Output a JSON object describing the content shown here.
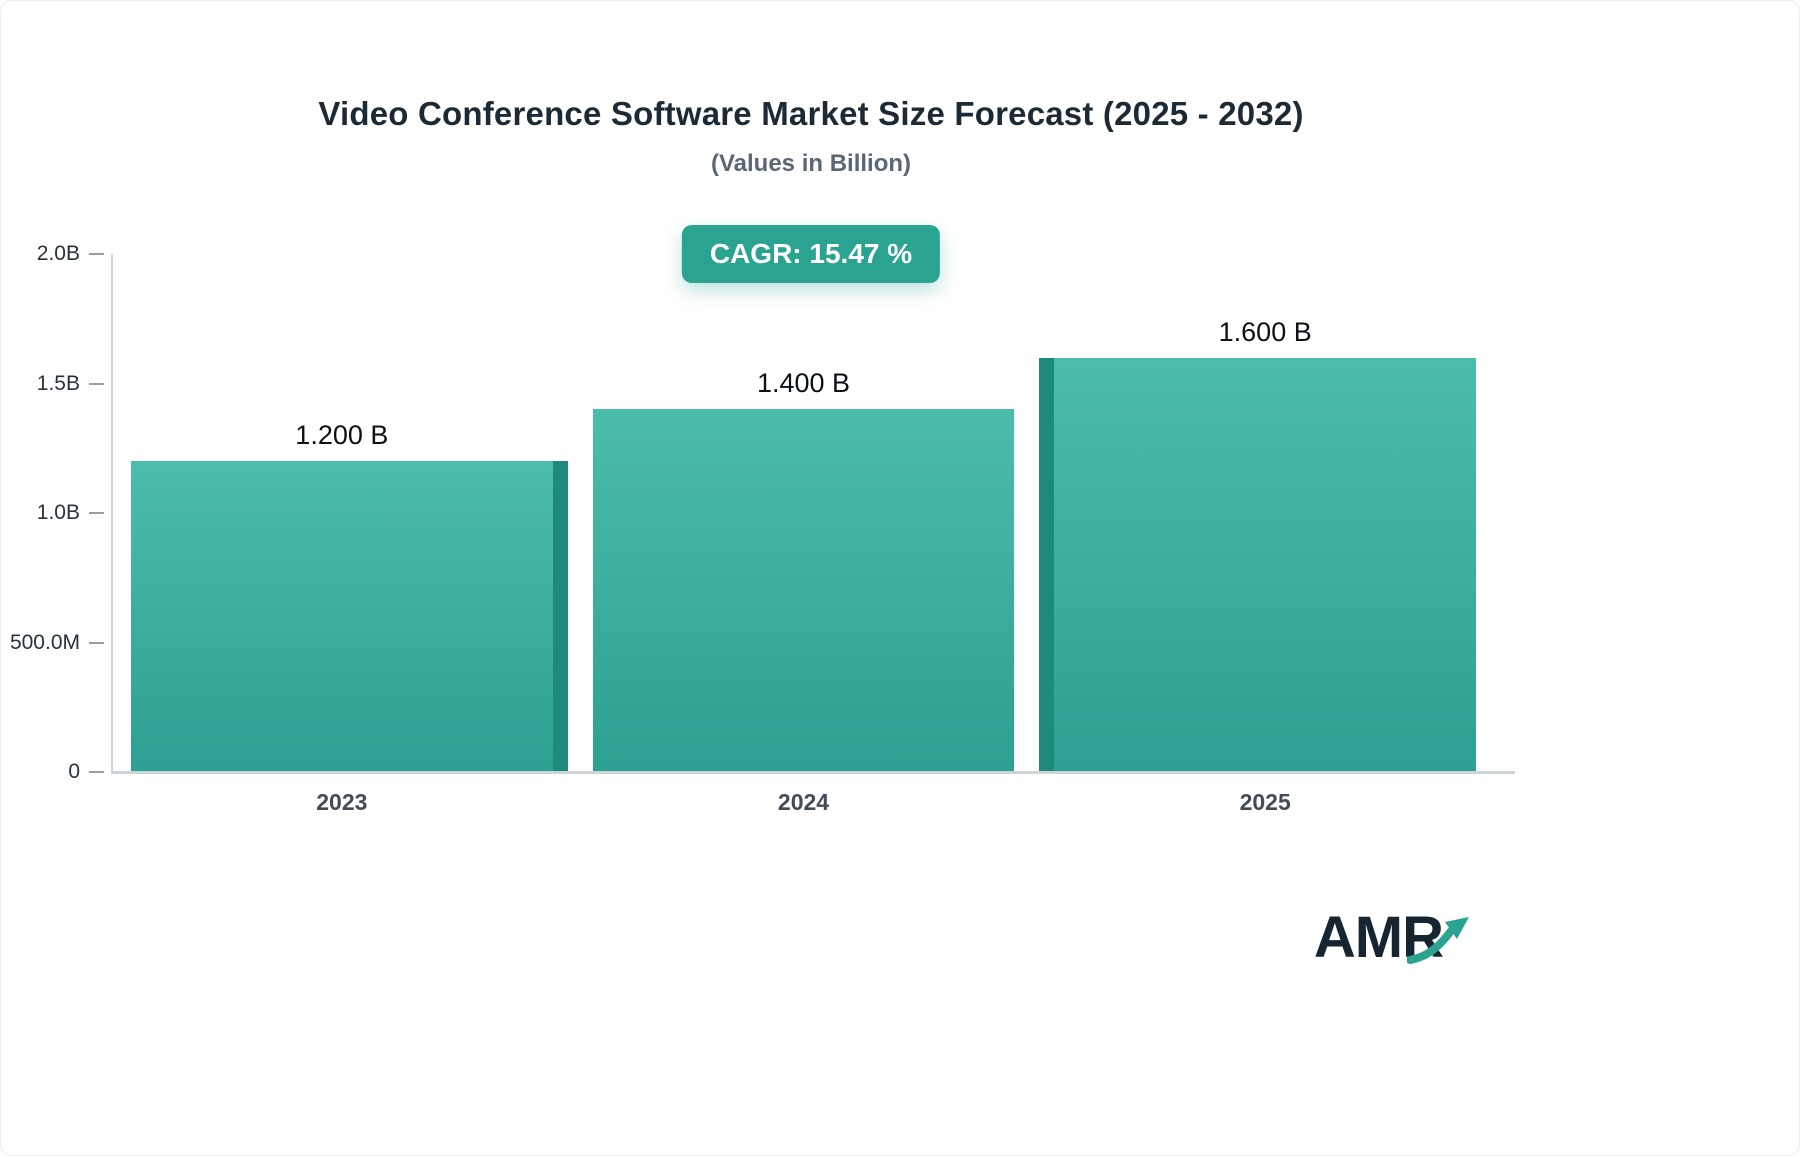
{
  "title": "Video Conference Software Market Size Forecast (2025 - 2032)",
  "subtitle": "(Values in Billion)",
  "badge": {
    "label": "CAGR: 15.47 %"
  },
  "logo": {
    "text": "AMR"
  },
  "chart_data": {
    "type": "bar",
    "title": "Video Conference Software Market Size Forecast (2025 - 2032)",
    "subtitle": "(Values in Billion)",
    "cagr_label": "CAGR: 15.47 %",
    "categories": [
      "2023",
      "2024",
      "2025"
    ],
    "values": [
      1.2,
      1.4,
      1.6
    ],
    "value_labels": [
      "1.200 B",
      "1.400 B",
      "1.600 B"
    ],
    "xlabel": "",
    "ylabel": "",
    "ylim": [
      0,
      2.0
    ],
    "yticks": [
      {
        "label": "2.0B",
        "value": 2.0
      },
      {
        "label": "1.5B",
        "value": 1.5
      },
      {
        "label": "1.0B",
        "value": 1.0
      },
      {
        "label": "500.0M",
        "value": 0.5
      },
      {
        "label": "0",
        "value": 0
      }
    ],
    "grid": false,
    "legend": false,
    "colors": {
      "bar_top": "#4cbdac",
      "bar_bottom": "#2ca092",
      "bar_side": "#1e8a7b",
      "accent": "#2aa391",
      "title_text": "#1c2a36",
      "subtitle_text": "#5a6774",
      "axis_line": "#cdd3d7"
    }
  }
}
